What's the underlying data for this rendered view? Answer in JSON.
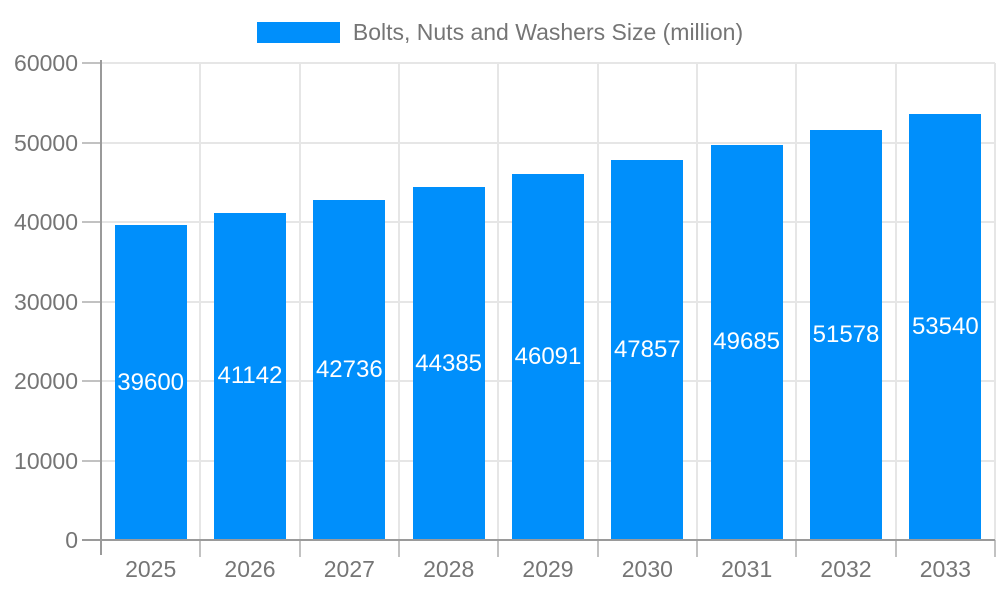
{
  "chart_data": {
    "type": "bar",
    "title": "",
    "series_name": "Bolts, Nuts and Washers Size (million)",
    "categories": [
      "2025",
      "2026",
      "2027",
      "2028",
      "2029",
      "2030",
      "2031",
      "2032",
      "2033"
    ],
    "values": [
      39600,
      41142,
      42736,
      44385,
      46091,
      47857,
      49685,
      51578,
      53540
    ],
    "ylim": [
      0,
      60000
    ],
    "yticks": [
      "0",
      "10000",
      "20000",
      "30000",
      "40000",
      "50000",
      "60000"
    ],
    "grid": true,
    "legend_position": "top-center",
    "value_labels_inside_bars": true,
    "colors": {
      "bar": "#008ffb",
      "axis_text": "#757575",
      "legend_text": "#757575",
      "value_label": "#ffffff",
      "gridline": "#e6e6e6",
      "tick": "#c2c2c2",
      "axis_line": "#9a9a9a",
      "background": "#ffffff"
    }
  }
}
